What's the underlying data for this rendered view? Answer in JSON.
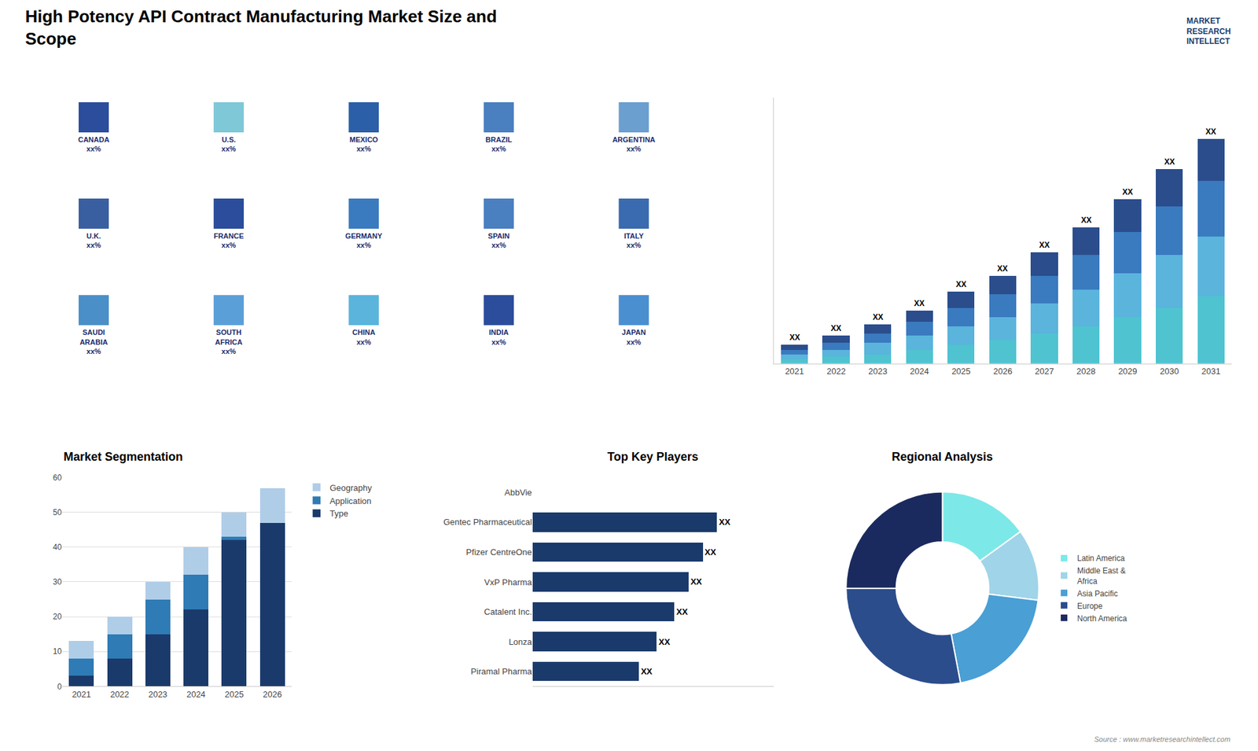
{
  "title": "High Potency API Contract Manufacturing Market Size and\nScope",
  "annotations": [
    "MARKET\nRESEARCH\nINTELLECT",
    "Source : www.marketresearchintellect.com"
  ],
  "chart_data": [
    {
      "type": "map",
      "categories": [
        "CANADA\nxx%",
        "U.S.\nxx%",
        "MEXICO\nxx%",
        "BRAZIL\nxx%",
        "ARGENTINA\nxx%",
        "U.K.\nxx%",
        "FRANCE\nxx%",
        "GERMANY\nxx%",
        "SPAIN\nxx%",
        "ITALY\nxx%",
        "SAUDI\nARABIA\nxx%",
        "SOUTH\nAFRICA\nxx%",
        "CHINA\nxx%",
        "INDIA\nxx%",
        "JAPAN\nxx%"
      ],
      "colors": [
        "#2b4d9c",
        "#7ec8d8",
        "#2b5fa8",
        "#4a7fc0",
        "#6a9fd0",
        "#3a5fa0",
        "#2b4d9c",
        "#3a7abf",
        "#4a7fc0",
        "#3a6aaf",
        "#4a8fc8",
        "#5a9fd8",
        "#5ab4dc",
        "#2b4d9c",
        "#4a8fd0"
      ],
      "tick_labels": false
    },
    {
      "type": "bar",
      "stacked": true,
      "categories": [
        "2021",
        "2022",
        "2023",
        "2024",
        "2025",
        "2026",
        "2027",
        "2028",
        "2029",
        "2030",
        "2031"
      ],
      "series": [
        {
          "color": "#4fc3d0",
          "values": [
            2,
            3,
            4,
            6,
            8,
            10,
            13,
            16,
            20,
            24,
            29
          ]
        },
        {
          "color": "#5ab4dc",
          "values": [
            2,
            3,
            5,
            6,
            8,
            10,
            13,
            16,
            19,
            23,
            26
          ]
        },
        {
          "color": "#3a7abf",
          "values": [
            2,
            3,
            4,
            6,
            8,
            10,
            12,
            15,
            18,
            21,
            24
          ]
        },
        {
          "color": "#2b4d8c",
          "values": [
            2,
            3,
            4,
            5,
            7,
            8,
            10,
            12,
            14,
            16,
            18
          ]
        }
      ],
      "ylim": [
        0,
        115
      ],
      "tick_labels": "x",
      "grid": false,
      "data_labels": true,
      "value_labels": [
        "XX",
        "XX",
        "XX",
        "XX",
        "XX",
        "XX",
        "XX",
        "XX",
        "XX",
        "XX",
        "XX"
      ]
    },
    {
      "type": "bar",
      "title": "Market Segmentation",
      "stacked": true,
      "categories": [
        "2021",
        "2022",
        "2023",
        "2024",
        "2025",
        "2026"
      ],
      "series": [
        {
          "name": "Type",
          "color": "#1a3a6b",
          "values": [
            3,
            8,
            15,
            22,
            42,
            47
          ]
        },
        {
          "name": "Application",
          "color": "#2e7bb5",
          "values": [
            5,
            7,
            10,
            10,
            1,
            0
          ]
        },
        {
          "name": "Geography",
          "color": "#b0cde8",
          "values": [
            5,
            5,
            5,
            8,
            7,
            10
          ]
        }
      ],
      "ylim": [
        0,
        60
      ],
      "yticks": [
        0,
        10,
        20,
        30,
        40,
        50,
        60
      ],
      "grid": true,
      "legend": "right"
    },
    {
      "type": "bar",
      "title": "Top Key Players",
      "orientation": "horizontal",
      "categories": [
        "AbbVie",
        "Gentec Pharmaceutical",
        "Pfizer CentreOne",
        "VxP Pharma",
        "Catalent Inc.",
        "Lonza",
        "Piramal Pharma"
      ],
      "values": [
        0,
        52,
        48,
        44,
        40,
        35,
        30
      ],
      "colors": [
        "none",
        "#1a3a6b",
        "#1a3a6b",
        "#1a3a6b",
        "#1a3a6b",
        "#1a3a6b",
        "#1a3a6b"
      ],
      "xlim": [
        0,
        68
      ],
      "tick_labels": "y",
      "grid": false,
      "data_labels": true,
      "value_labels": [
        null,
        "XX",
        "XX",
        "XX",
        "XX",
        "XX",
        "XX"
      ]
    },
    {
      "type": "pie",
      "title": "Regional Analysis",
      "categories": [
        "Latin America",
        "Middle East &\nAfrica",
        "Asia Pacific",
        "Europe",
        "North America"
      ],
      "values": [
        15,
        12,
        20,
        28,
        25
      ],
      "colors": [
        "#7de8e8",
        "#a0d4e8",
        "#4a9fd4",
        "#2b4d8c",
        "#1a2a5e"
      ],
      "legend": "right"
    }
  ]
}
